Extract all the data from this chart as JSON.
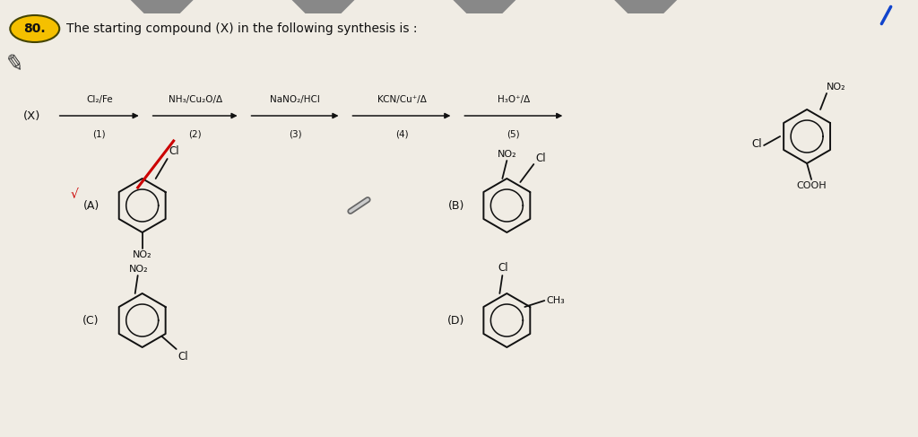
{
  "background_color": "#f0ece4",
  "title_text": "The starting compound (X) in the following synthesis is :",
  "question_number": "80.",
  "question_number_bg": "#f5c000",
  "synthesis_steps": [
    {
      "label": "Cl₂/Fe",
      "number": "(1)"
    },
    {
      "label": "NH₃/Cu₂O/Δ",
      "number": "(2)"
    },
    {
      "label": "NaNO₂/HCl",
      "number": "(3)"
    },
    {
      "label": "KCN/Cu⁺/Δ",
      "number": "(4)"
    },
    {
      "label": "H₃O⁺/Δ",
      "number": "(5)"
    }
  ],
  "answer_mark_color": "#cc0000",
  "blue_tick_color": "#1144cc",
  "text_color": "#111111",
  "arrow_color": "#111111",
  "ring_color": "#111111"
}
